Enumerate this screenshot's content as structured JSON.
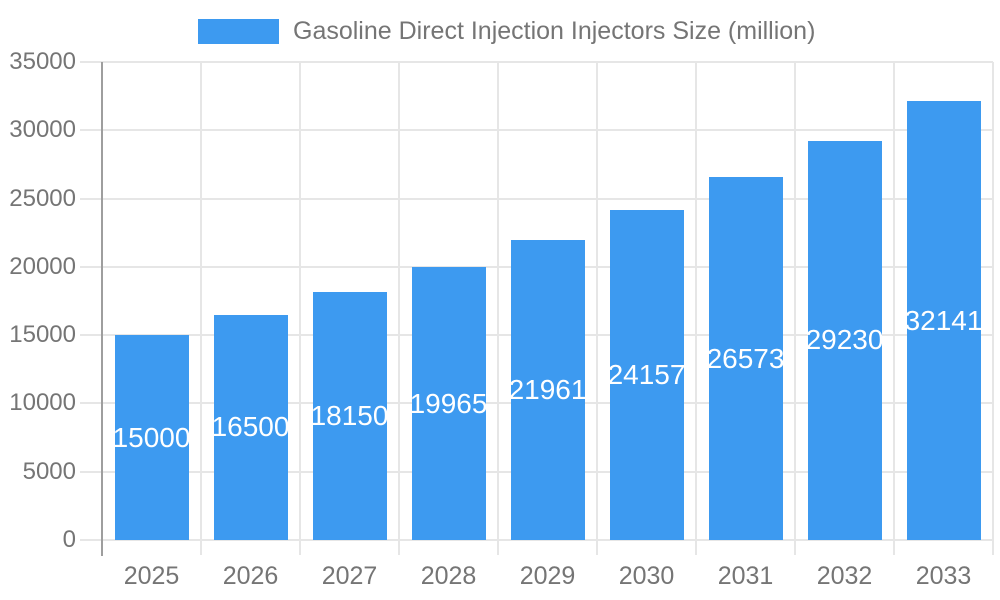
{
  "chart_data": {
    "type": "bar",
    "title": "Gasoline Direct Injection Injectors Size (million)",
    "legend": {
      "position": "top",
      "entries": [
        "Gasoline Direct Injection Injectors Size (million)"
      ]
    },
    "categories": [
      "2025",
      "2026",
      "2027",
      "2028",
      "2029",
      "2030",
      "2031",
      "2032",
      "2033"
    ],
    "values": [
      15000,
      16500,
      18150,
      19965,
      21961,
      24157,
      26573,
      29230,
      32141
    ],
    "bar_value_labels": [
      "15000",
      "16500",
      "18150",
      "19965",
      "21961",
      "24157",
      "26573",
      "29230",
      "32141"
    ],
    "xlabel": "",
    "ylabel": "",
    "ylim": [
      0,
      35000
    ],
    "ytick_step": 5000,
    "yticks": [
      0,
      5000,
      10000,
      15000,
      20000,
      25000,
      30000,
      35000
    ],
    "ytick_labels": [
      "0",
      "5000",
      "10000",
      "15000",
      "20000",
      "25000",
      "30000",
      "35000"
    ],
    "grid": true,
    "colors": {
      "bar": "#3d9af0",
      "bar_label_text": "#ffffff",
      "axis_text": "#757575",
      "legend_text": "#757575",
      "gridline": "#e6e6e6",
      "axis_line": "#9e9e9e",
      "background": "#ffffff"
    }
  }
}
